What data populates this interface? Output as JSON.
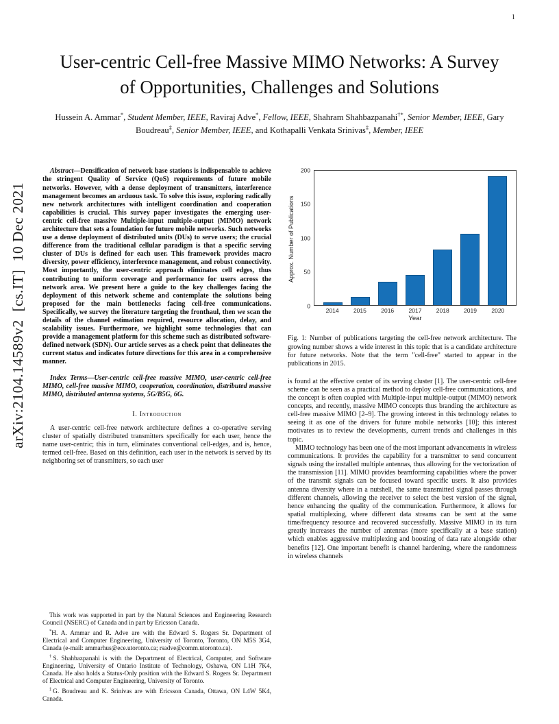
{
  "page_number": "1",
  "arxiv_label": "arXiv:2104.14589v2  [cs.IT]  10 Dec 2021",
  "title": "User-centric Cell-free Massive MIMO Networks: A Survey of Opportunities, Challenges and Solutions",
  "authors": {
    "segments": [
      {
        "text": "Hussein A. Ammar",
        "italic": false
      },
      {
        "text": "*",
        "sup": true
      },
      {
        "text": ", ",
        "italic": false
      },
      {
        "text": "Student Member, IEEE",
        "italic": true
      },
      {
        "text": ", Raviraj Adve",
        "italic": false
      },
      {
        "text": "*",
        "sup": true
      },
      {
        "text": ", ",
        "italic": false
      },
      {
        "text": "Fellow, IEEE",
        "italic": true
      },
      {
        "text": ", Shahram Shahbazpanahi",
        "italic": false
      },
      {
        "text": "†*",
        "sup": true
      },
      {
        "text": ", ",
        "italic": false
      },
      {
        "text": "Senior Member, IEEE",
        "italic": true
      },
      {
        "text": ", Gary Boudreau",
        "italic": false
      },
      {
        "text": "‡",
        "sup": true
      },
      {
        "text": ", ",
        "italic": false
      },
      {
        "text": "Senior Member, IEEE",
        "italic": true
      },
      {
        "text": ", and Kothapalli Venkata Srinivas",
        "italic": false
      },
      {
        "text": "‡",
        "sup": true
      },
      {
        "text": ", ",
        "italic": false
      },
      {
        "text": "Member, IEEE",
        "italic": true
      }
    ]
  },
  "abstract": {
    "label": "Abstract—",
    "text": "Densification of network base stations is indispensable to achieve the stringent Quality of Service (QoS) requirements of future mobile networks. However, with a dense deployment of transmitters, interference management becomes an arduous task. To solve this issue, exploring radically new network architectures with intelligent coordination and cooperation capabilities is crucial. This survey paper investigates the emerging user-centric cell-free massive Multiple-input multiple-output (MIMO) network architecture that sets a foundation for future mobile networks. Such networks use a dense deployment of distributed units (DUs) to serve users; the crucial difference from the traditional cellular paradigm is that a specific serving cluster of DUs is defined for each user. This framework provides macro diversity, power efficiency, interference management, and robust connectivity. Most importantly, the user-centric approach eliminates cell edges, thus contributing to uniform coverage and performance for users across the network area. We present here a guide to the key challenges facing the deployment of this network scheme and contemplate the solutions being proposed for the main bottlenecks facing cell-free communications. Specifically, we survey the literature targeting the fronthaul, then we scan the details of the channel estimation required, resource allocation, delay, and scalability issues. Furthermore, we highlight some technologies that can provide a management platform for this scheme such as distributed software-defined network (SDN). Our article serves as a check point that delineates the current status and indicates future directions for this area in a comprehensive manner."
  },
  "index_terms": {
    "label": "Index Terms—",
    "text": "User-centric cell-free massive MIMO, user-centric cell-free MIMO, cell-free massive MIMO, cooperation, coordination, distributed massive MIMO, distributed antenna systems, 5G/B5G, 6G."
  },
  "sections": {
    "intro_heading": "I. Introduction"
  },
  "intro_p1": "A user-centric cell-free network architecture defines a co-operative serving cluster of spatially distributed transmitters specifically for each user, hence the name user-centric; this in turn, eliminates conventional cell-edges, and is, hence, termed cell-free. Based on this definition, each user in the network is served by its neighboring set of transmitters, so each user",
  "footnotes": [
    {
      "marker": "",
      "text": "This work was supported in part by the Natural Sciences and Engineering Research Council (NSERC) of Canada and in part by Ericsson Canada."
    },
    {
      "marker": "*",
      "text": "H. A. Ammar and R. Adve are with the Edward S. Rogers Sr. Department of Electrical and Computer Engineering, University of Toronto, Toronto, ON M5S 3G4, Canada (e-mail: ammarhus@ece.utoronto.ca; rsadve@comm.utoronto.ca)."
    },
    {
      "marker": "†",
      "text": "S. Shahbazpanahi is with the Department of Electrical, Computer, and Software Engineering, University of Ontario Institute of Technology, Oshawa, ON L1H 7K4, Canada. He also holds a Status-Only position with the Edward S. Rogers Sr. Department of Electrical and Computer Engineering, University of Toronto."
    },
    {
      "marker": "‡",
      "text": "G. Boudreau and K. Srinivas are with Ericsson Canada, Ottawa, ON L4W 5K4, Canada."
    }
  ],
  "figure": {
    "caption_label": "Fig. 1:",
    "caption_text": "Number of publications targeting the cell-free network architecture. The growing number shows a wide interest in this topic that is a candidate architecture for future networks. Note that the term \"cell-free\" started to appear in the publications in 2015."
  },
  "right_col": {
    "p1": "is found at the effective center of its serving cluster [1]. The user-centric cell-free scheme can be seen as a practical method to deploy cell-free communications, and the concept is often coupled with Multiple-input multiple-output (MIMO) network concepts, and recently, massive MIMO concepts thus branding the architecture as cell-free massive MIMO [2–9]. The growing interest in this technology relates to seeing it as one of the drivers for future mobile networks [10]; this interest motivates us to review the developments, current trends and challenges in this topic.",
    "p2": "MIMO technology has been one of the most important advancements in wireless communications. It provides the capability for a transmitter to send concurrent signals using the installed multiple antennas, thus allowing for the vectorization of the transmission [11]. MIMO provides beamforming capabilities where the power of the transmit signals can be focused toward specific users. It also provides antenna diversity where in a nutshell, the same transmitted signal passes through different channels, allowing the receiver to select the best version of the signal, hence enhancing the quality of the communication. Furthermore, it allows for spatial multiplexing, where different data streams can be sent at the same time/frequency resource and recovered successfully. Massive MIMO in its turn greatly increases the number of antennas (more specifically at a base station) which enables aggressive multiplexing and boosting of data rate alongside other benefits [12]. One important benefit is channel hardening, where the randomness in wireless channels"
  },
  "chart_data": {
    "type": "bar",
    "categories": [
      "2014",
      "2015",
      "2016",
      "2017",
      "2018",
      "2019",
      "2020"
    ],
    "values": [
      4,
      13,
      35,
      45,
      83,
      106,
      192
    ],
    "title": "",
    "xlabel": "Year",
    "ylabel": "Approx. Number of Publications",
    "ylim": [
      0,
      200
    ],
    "yticks": [
      0,
      50,
      100,
      150,
      200
    ],
    "grid": false,
    "legend": "none",
    "bar_color": "#1770b8"
  }
}
